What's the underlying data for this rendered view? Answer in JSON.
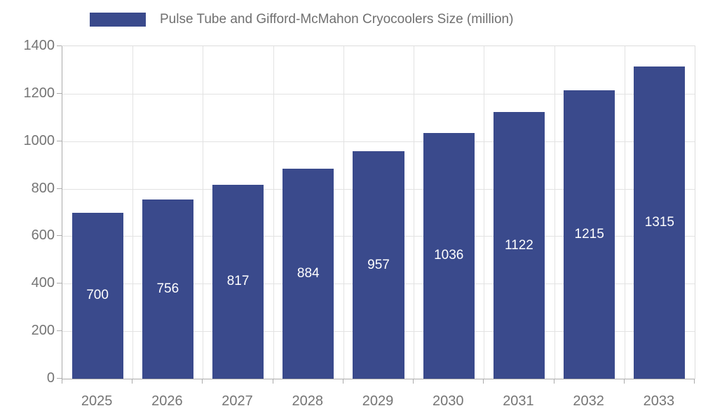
{
  "legend": {
    "label": "Pulse Tube and Gifford-McMahon Cryocoolers Size (million)"
  },
  "chart_data": {
    "type": "bar",
    "title": "Pulse Tube and Gifford-McMahon Cryocoolers Size (million)",
    "categories": [
      "2025",
      "2026",
      "2027",
      "2028",
      "2029",
      "2030",
      "2031",
      "2032",
      "2033"
    ],
    "values": [
      700,
      756,
      817,
      884,
      957,
      1036,
      1122,
      1215,
      1315
    ],
    "xlabel": "",
    "ylabel": "",
    "ylim": [
      0,
      1400
    ],
    "yticks": [
      0,
      200,
      400,
      600,
      800,
      1000,
      1200,
      1400
    ],
    "grid": true,
    "legend_position": "top-left",
    "bar_color": "#3a4a8c",
    "value_label_color": "#ffffff",
    "axis_text_color": "#757575"
  }
}
